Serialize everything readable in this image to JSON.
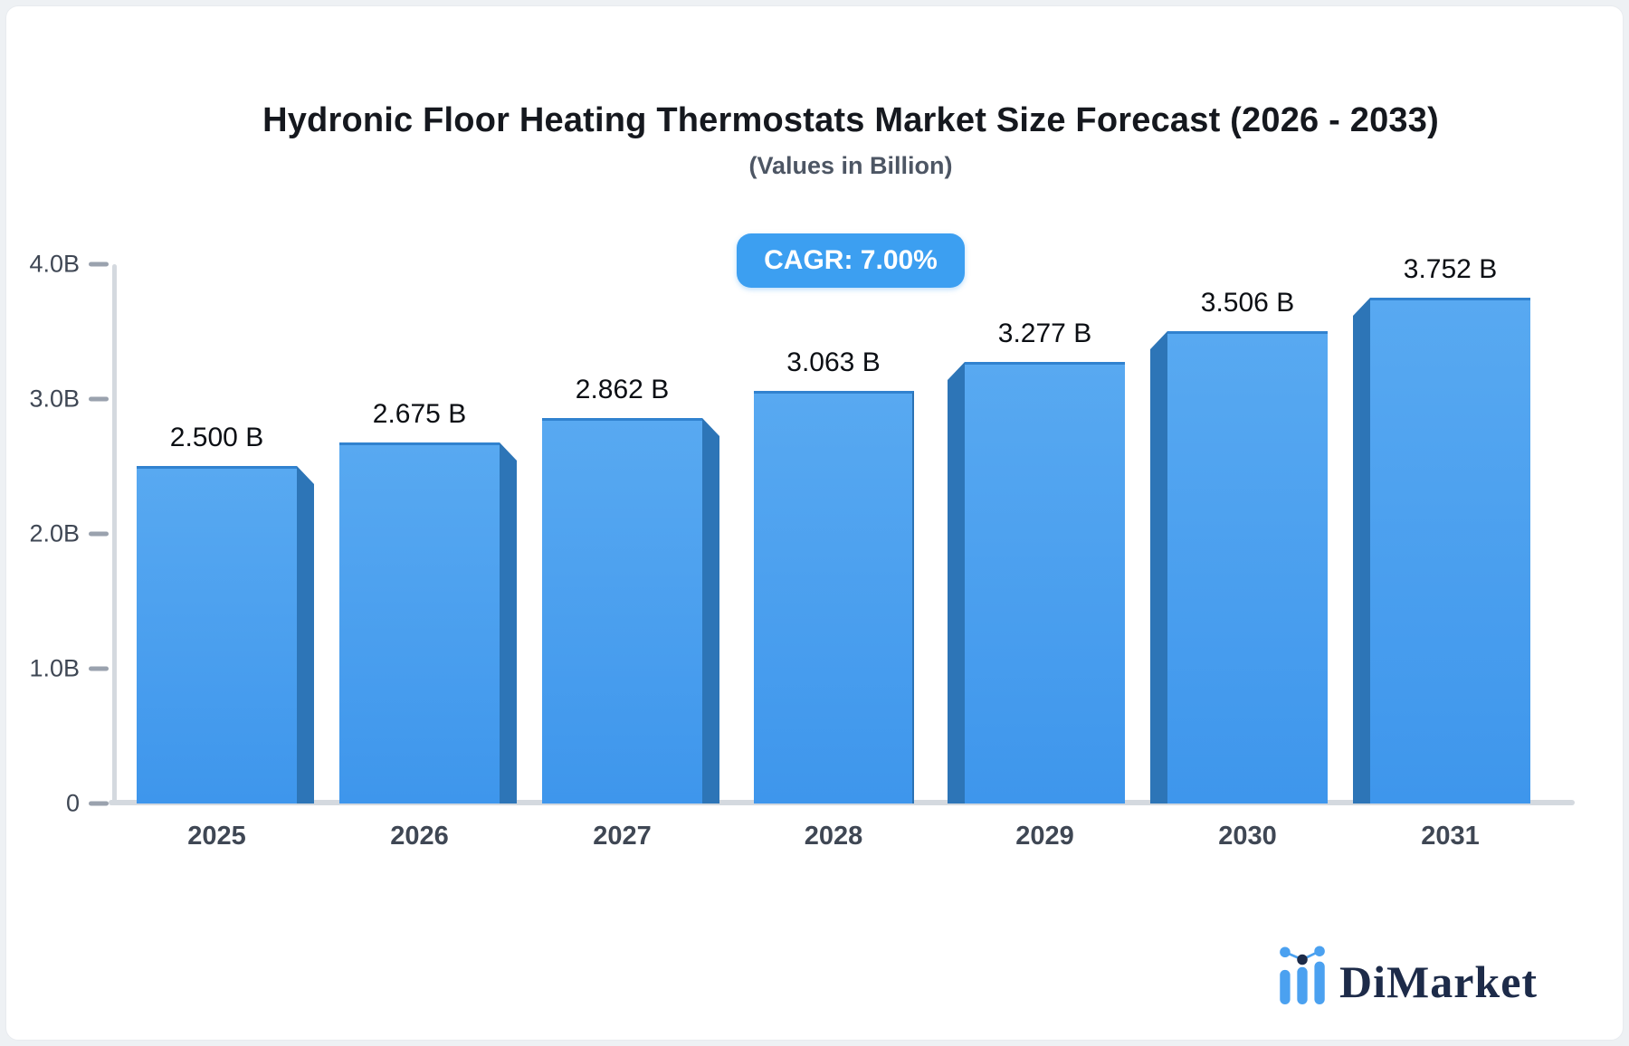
{
  "title": "Hydronic Floor Heating Thermostats Market Size Forecast (2026 - 2033)",
  "subtitle": "(Values in Billion)",
  "badge": {
    "label": "CAGR: 7.00%"
  },
  "chart_data": {
    "type": "bar",
    "categories": [
      "2025",
      "2026",
      "2027",
      "2028",
      "2029",
      "2030",
      "2031"
    ],
    "values": [
      2.5,
      2.675,
      2.862,
      3.063,
      3.277,
      3.506,
      3.752
    ],
    "value_labels": [
      "2.500 B",
      "2.675 B",
      "2.862 B",
      "3.063 B",
      "3.277 B",
      "3.506 B",
      "3.752 B"
    ],
    "title": "Hydronic Floor Heating Thermostats Market Size Forecast (2026 - 2033)",
    "xlabel": "",
    "ylabel": "",
    "ylim": [
      0,
      4
    ],
    "yticks": [
      "0",
      "1.0B",
      "2.0B",
      "3.0B",
      "4.0B"
    ],
    "grid": false,
    "legend": false,
    "bar_color": "#4BA1EF",
    "bar_side_color": "#2D75B7",
    "accent_color": "#3C9FF1"
  },
  "logo": {
    "text": "DiMarket"
  }
}
